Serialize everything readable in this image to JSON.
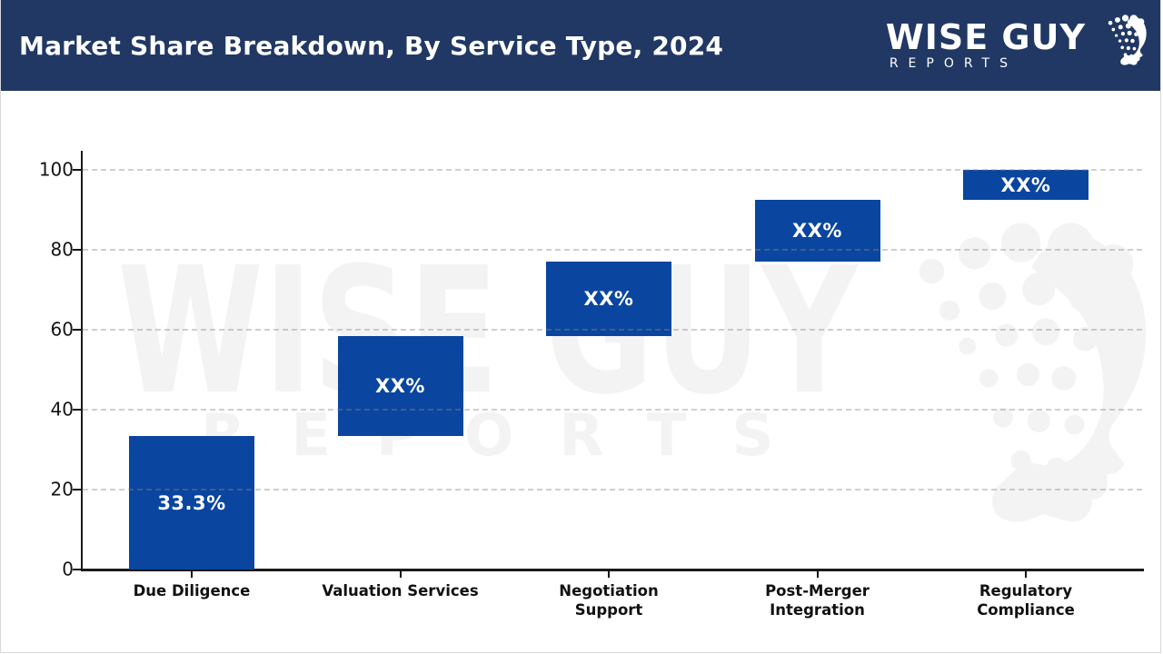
{
  "header": {
    "title": "Market Share Breakdown, By Service Type, 2024",
    "logo": {
      "line1": "WISE GUY",
      "line2": "REPORTS"
    }
  },
  "watermark": {
    "line1": "WISE GUY",
    "line2": "REPORTS"
  },
  "chart_data": {
    "type": "bar",
    "subtype": "waterfall",
    "title": "Market Share Breakdown, By Service Type, 2024",
    "xlabel": "",
    "ylabel": "",
    "categories": [
      "Due Diligence",
      "Valuation Services",
      "Negotiation\nSupport",
      "Post-Merger\nIntegration",
      "Regulatory\nCompliance"
    ],
    "segments": [
      {
        "category": "Due Diligence",
        "start": 0,
        "end": 33.3,
        "value_label": "33.3%"
      },
      {
        "category": "Valuation Services",
        "start": 33.3,
        "end": 58.5,
        "value_label": "XX%"
      },
      {
        "category": "Negotiation Support",
        "start": 58.5,
        "end": 77.0,
        "value_label": "XX%"
      },
      {
        "category": "Post-Merger Integration",
        "start": 77.0,
        "end": 92.4,
        "value_label": "XX%"
      },
      {
        "category": "Regulatory Compliance",
        "start": 92.4,
        "end": 100,
        "value_label": "XX%"
      }
    ],
    "y_ticks": [
      0,
      20,
      40,
      60,
      80,
      100
    ],
    "ylim": [
      0,
      105
    ],
    "grid": "horizontal dashed, drawn over bars",
    "legend": "none"
  },
  "colors": {
    "header_bg": "#213864",
    "bar": "#0a45a0",
    "bar_label": "#ffffff",
    "axis": "#1a1a1a",
    "gridline": "#d6d6d6",
    "watermark": "#f3f3f3"
  }
}
